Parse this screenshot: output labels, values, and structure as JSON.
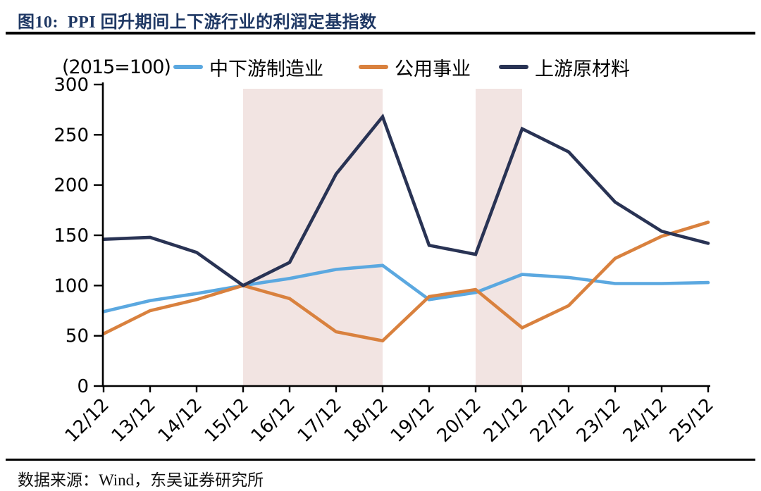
{
  "figure": {
    "title": "图10:  PPI 回升期间上下游行业的利润定基指数",
    "source": "数据来源：Wind，东吴证券研究所"
  },
  "chart_data": {
    "type": "line",
    "title": "PPI 回升期间上下游行业的利润定基指数",
    "unit_label": "(2015=100)",
    "legend_position": "top",
    "grid": false,
    "xlabel": "",
    "ylabel": "",
    "ylim": [
      0,
      300
    ],
    "ytick_step": 50,
    "categories": [
      "12/12",
      "13/12",
      "14/12",
      "15/12",
      "16/12",
      "17/12",
      "18/12",
      "19/12",
      "20/12",
      "21/12",
      "22/12",
      "23/12",
      "24/12",
      "25/12"
    ],
    "series": [
      {
        "name": "中下游制造业",
        "color": "#5ba8e0",
        "values": [
          74,
          85,
          92,
          100,
          107,
          116,
          120,
          86,
          93,
          111,
          108,
          102,
          102,
          103
        ]
      },
      {
        "name": "公用事业",
        "color": "#d9813e",
        "values": [
          52,
          75,
          86,
          100,
          87,
          54,
          45,
          89,
          96,
          58,
          80,
          127,
          149,
          163
        ]
      },
      {
        "name": "上游原材料",
        "color": "#293354",
        "values": [
          146,
          148,
          133,
          100,
          123,
          211,
          268,
          140,
          131,
          256,
          233,
          183,
          154,
          142
        ]
      }
    ],
    "highlight_bands": [
      {
        "from": "15/12",
        "to": "18/12"
      },
      {
        "from": "20/12",
        "to": "21/12"
      }
    ],
    "band_color": "#f2e4e2",
    "axis_color": "#000000"
  }
}
